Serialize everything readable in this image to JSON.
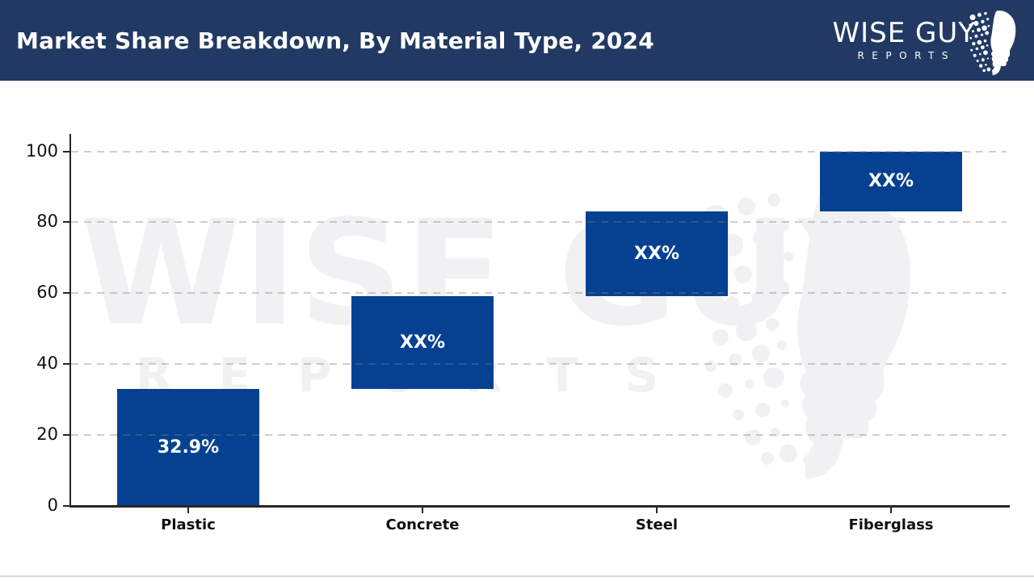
{
  "header": {
    "title": "Market Share Breakdown, By Material Type, 2024",
    "logo": {
      "name": "WISE GUY",
      "sub": "REPORTS"
    }
  },
  "watermark": {
    "name": "WISE GUY",
    "sub": "REPORTS"
  },
  "chart_data": {
    "type": "bar",
    "variant": "waterfall",
    "title": "Market Share Breakdown, By Material Type, 2024",
    "categories": [
      "Plastic",
      "Concrete",
      "Steel",
      "Fiberglass"
    ],
    "segments": [
      {
        "category": "Plastic",
        "start": 0,
        "end": 32.9,
        "label": "32.9%"
      },
      {
        "category": "Concrete",
        "start": 32.9,
        "end": 59.2,
        "label": "XX%"
      },
      {
        "category": "Steel",
        "start": 59.2,
        "end": 83,
        "label": "XX%"
      },
      {
        "category": "Fiberglass",
        "start": 83,
        "end": 100,
        "label": "XX%"
      }
    ],
    "y_ticks": [
      0,
      20,
      40,
      60,
      80,
      100
    ],
    "ylim": [
      0,
      104
    ],
    "xlabel": "",
    "ylabel": "",
    "grid": "horizontal-dashed",
    "legend": "none"
  },
  "colors": {
    "header_bg": "#223a63",
    "bar": "#054190",
    "bar_label": "#ffffff",
    "axis": "#262626",
    "grid": "#d8d8d8",
    "watermark": "#f1f1f3",
    "bottom_line": "#d8d8d8"
  }
}
